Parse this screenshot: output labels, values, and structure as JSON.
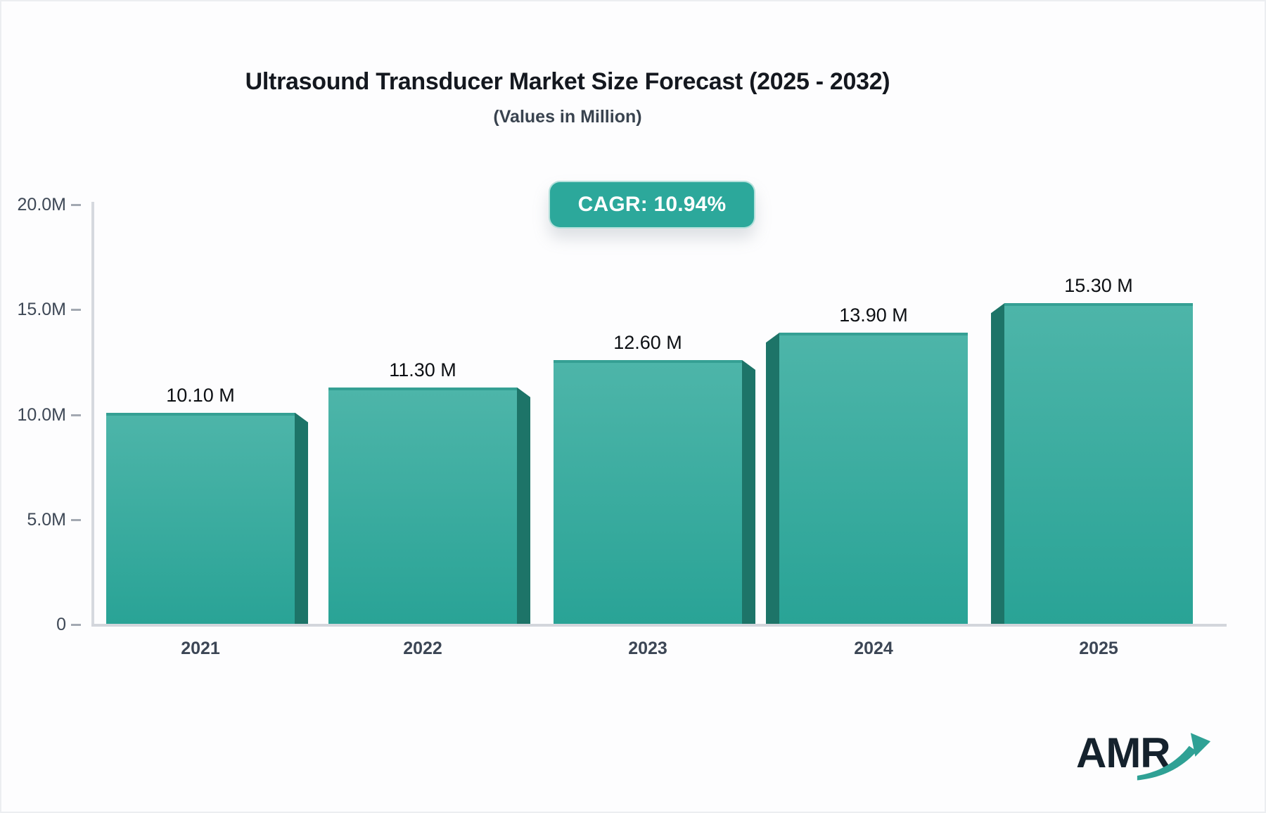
{
  "title": "Ultrasound Transducer Market Size Forecast (2025 - 2032)",
  "subtitle": "(Values in Million)",
  "badge": {
    "label": "CAGR: 10.94%"
  },
  "colors": {
    "badge_bg": "#2ca89b",
    "bar_top": "#4db5a9",
    "bar_bottom": "#29a396",
    "bar_top_edge": "#35a094",
    "bar_bevel": "#1d7468",
    "axis_line": "#d6d9df",
    "tick_dash": "#a3a9b2",
    "axis_label": "#3e4856",
    "value_label": "#0c0f13",
    "logo_text": "#15222d",
    "logo_arrow": "#2fa195"
  },
  "chart_data": {
    "type": "bar",
    "categories": [
      "2021",
      "2022",
      "2023",
      "2024",
      "2025"
    ],
    "values": [
      10.1,
      11.3,
      12.6,
      13.9,
      15.3
    ],
    "value_labels": [
      "10.10 M",
      "11.30 M",
      "12.60 M",
      "13.90 M",
      "15.30 M"
    ],
    "title": "Ultrasound Transducer Market Size Forecast (2025 - 2032)",
    "subtitle": "(Values in Million)",
    "xlabel": "",
    "ylabel": "",
    "ylim": [
      0,
      20
    ],
    "y_ticks": [
      {
        "label": "0",
        "value": 0
      },
      {
        "label": "5.0M",
        "value": 5
      },
      {
        "label": "10.0M",
        "value": 10
      },
      {
        "label": "15.0M",
        "value": 15
      },
      {
        "label": "20.0M",
        "value": 20
      }
    ],
    "grid": false,
    "legend": "none",
    "style_3d": true,
    "bevel_sides": [
      "right",
      "right",
      "right",
      "left",
      "left"
    ]
  },
  "logo": {
    "text": "AMR"
  }
}
